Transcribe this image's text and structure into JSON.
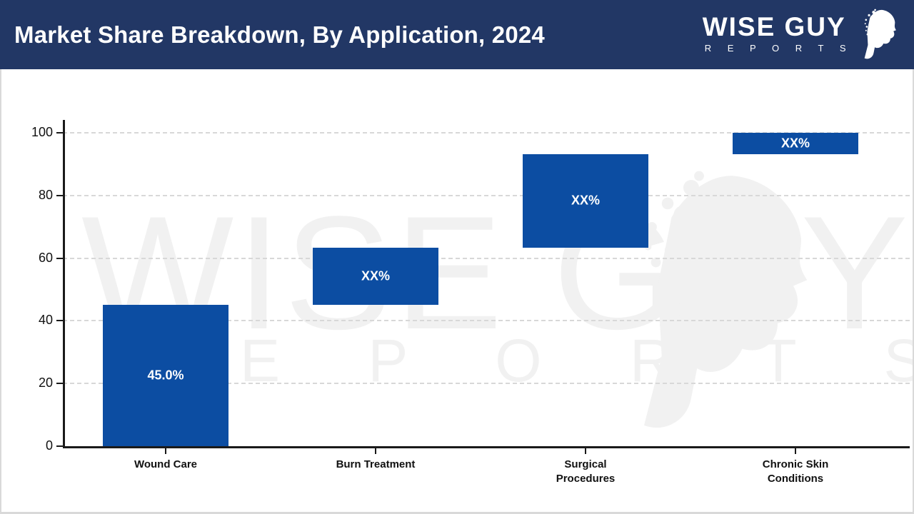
{
  "header": {
    "title": "Market Share Breakdown, By Application, 2024",
    "brand": {
      "line1": "WISE GUY",
      "line2": "R E P O R T S"
    }
  },
  "watermark": {
    "line1": "WISE GUY",
    "line2": "R E P O R T S"
  },
  "colors": {
    "header_bg": "#223765",
    "bar": "#0c4da2",
    "grid": "#d8d8d8",
    "axis": "#1a1a1a",
    "bar_label": "#ffffff",
    "watermark": "#f1f1f1"
  },
  "chart_data": {
    "type": "bar",
    "variant": "waterfall",
    "title": "Market Share Breakdown, By Application, 2024",
    "categories": [
      "Wound Care",
      "Burn Treatment",
      "Surgical\nProcedures",
      "Chronic Skin\nConditions"
    ],
    "segments": [
      {
        "category": "Wound Care",
        "start": 0,
        "end": 45,
        "value_label": "45.0%"
      },
      {
        "category": "Burn Treatment",
        "start": 45,
        "end": 63.3,
        "value_label": "XX%"
      },
      {
        "category": "Surgical Procedures",
        "start": 63.3,
        "end": 93.2,
        "value_label": "XX%"
      },
      {
        "category": "Chronic Skin Conditions",
        "start": 93.2,
        "end": 100,
        "value_label": "XX%"
      }
    ],
    "ylim": [
      0,
      100
    ],
    "yticks": [
      0,
      20,
      40,
      60,
      80,
      100
    ],
    "grid": "horizontal-dashed",
    "legend": "none"
  }
}
